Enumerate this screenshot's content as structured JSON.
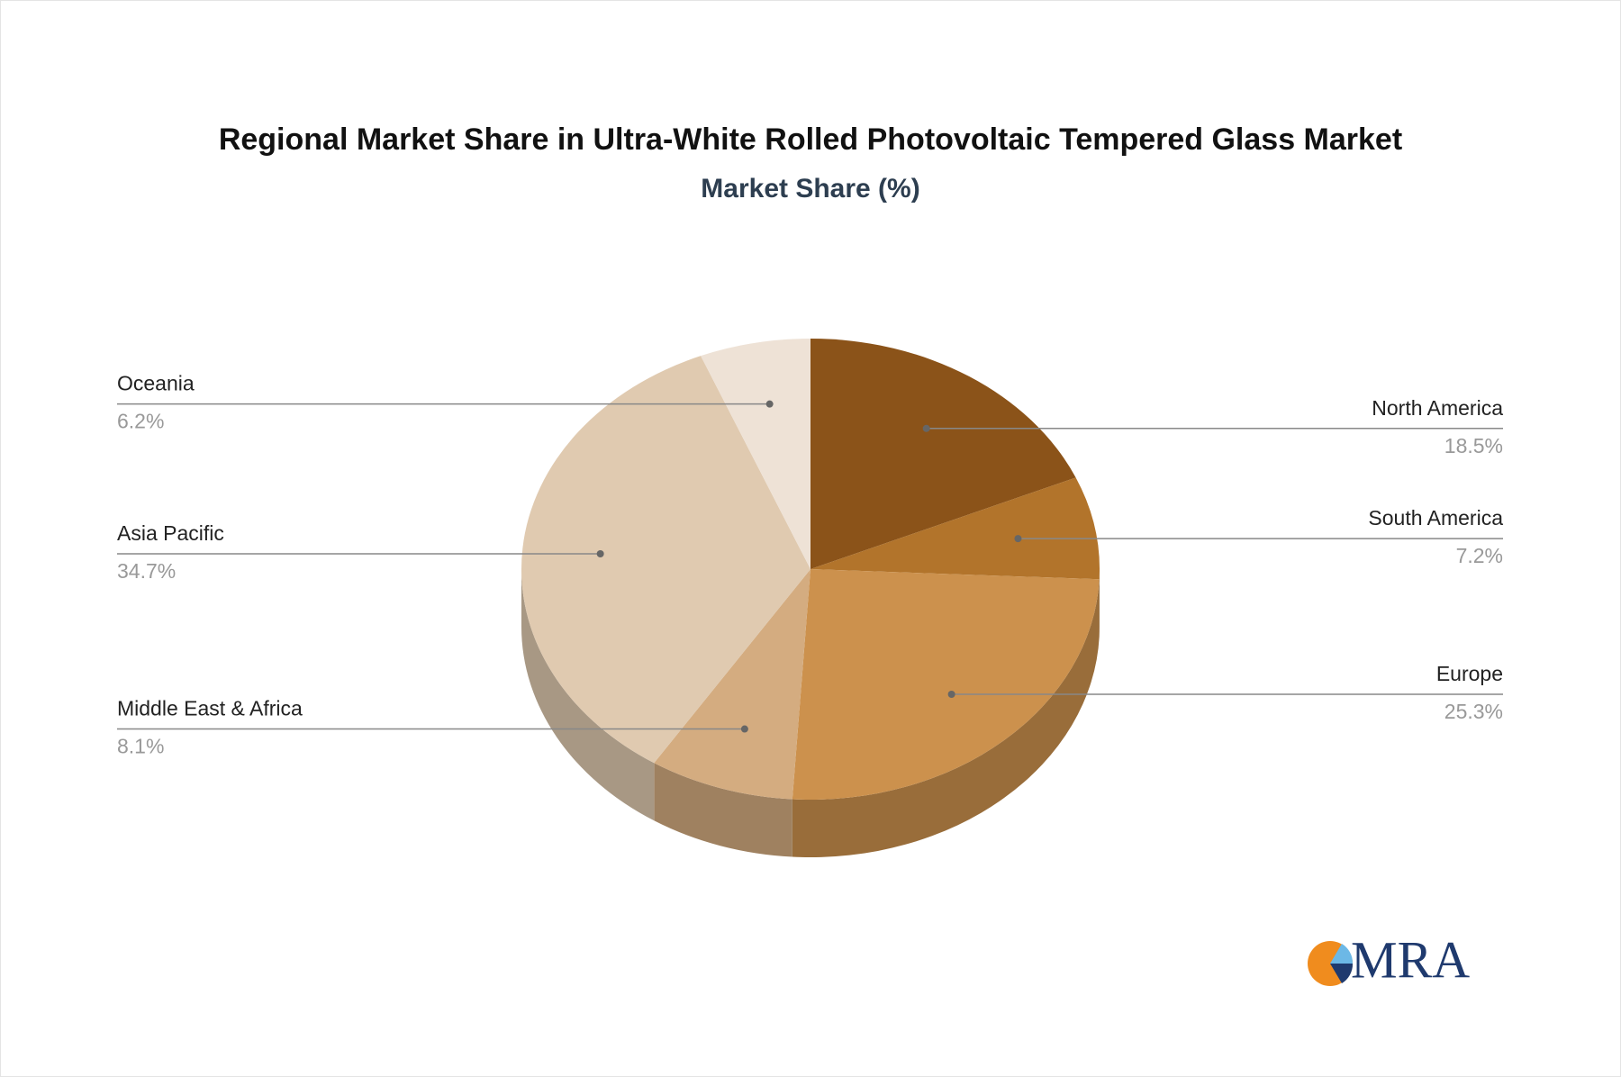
{
  "chart_data": {
    "type": "pie3d",
    "title": "Regional Market Share in Ultra-White Rolled Photovoltaic Tempered Glass Market",
    "subtitle": "Market Share (%)",
    "categories": [
      "North America",
      "South America",
      "Europe",
      "Middle East & Africa",
      "Asia Pacific",
      "Oceania"
    ],
    "values": [
      18.5,
      7.2,
      25.3,
      8.1,
      34.7,
      6.2
    ],
    "value_labels": [
      "18.5%",
      "7.2%",
      "25.3%",
      "8.1%",
      "34.7%",
      "6.2%"
    ],
    "colors": [
      "#8b5319",
      "#b2742b",
      "#cc914d",
      "#d4ac80",
      "#e0cab0",
      "#eee2d6"
    ]
  },
  "logo": "MRA"
}
